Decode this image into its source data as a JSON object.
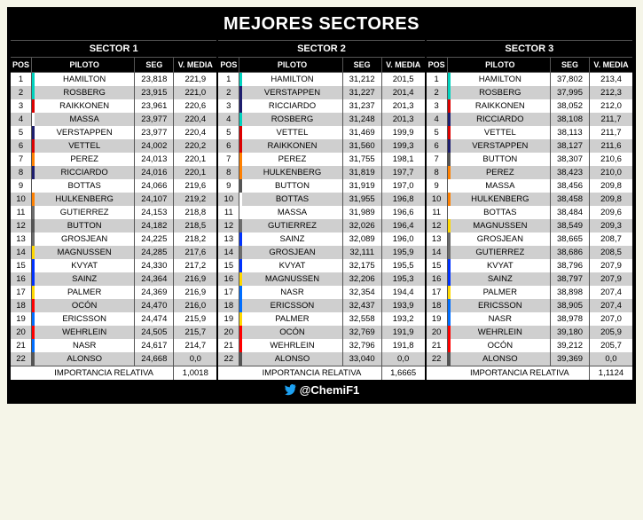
{
  "title": "MEJORES SECTORES",
  "handle": "@ChemiF1",
  "columns": {
    "pos": "POS",
    "piloto": "PILOTO",
    "seg": "SEG",
    "vmedia": "V. MEDIA"
  },
  "importancia_label": "IMPORTANCIA RELATIVA",
  "team_colors": {
    "mercedes": "#00d2be",
    "ferrari": "#dc0000",
    "redbull": "#1e1e6e",
    "williams": "#ffffff",
    "forceindia": "#ff8000",
    "tororosso": "#0032ff",
    "haas": "#6c6c6c",
    "renault": "#ffd800",
    "mclaren": "#555555",
    "manor": "#ff0000",
    "sauber": "#006eff"
  },
  "sectors": [
    {
      "name": "SECTOR 1",
      "importancia": "1,0018",
      "rows": [
        {
          "pos": 1,
          "piloto": "HAMILTON",
          "seg": "23,818",
          "vm": "221,9",
          "team": "mercedes"
        },
        {
          "pos": 2,
          "piloto": "ROSBERG",
          "seg": "23,915",
          "vm": "221,0",
          "team": "mercedes"
        },
        {
          "pos": 3,
          "piloto": "RAIKKONEN",
          "seg": "23,961",
          "vm": "220,6",
          "team": "ferrari"
        },
        {
          "pos": 4,
          "piloto": "MASSA",
          "seg": "23,977",
          "vm": "220,4",
          "team": "williams"
        },
        {
          "pos": 5,
          "piloto": "VERSTAPPEN",
          "seg": "23,977",
          "vm": "220,4",
          "team": "redbull"
        },
        {
          "pos": 6,
          "piloto": "VETTEL",
          "seg": "24,002",
          "vm": "220,2",
          "team": "ferrari"
        },
        {
          "pos": 7,
          "piloto": "PEREZ",
          "seg": "24,013",
          "vm": "220,1",
          "team": "forceindia"
        },
        {
          "pos": 8,
          "piloto": "RICCIARDO",
          "seg": "24,016",
          "vm": "220,1",
          "team": "redbull"
        },
        {
          "pos": 9,
          "piloto": "BOTTAS",
          "seg": "24,066",
          "vm": "219,6",
          "team": "williams"
        },
        {
          "pos": 10,
          "piloto": "HULKENBERG",
          "seg": "24,107",
          "vm": "219,2",
          "team": "forceindia"
        },
        {
          "pos": 11,
          "piloto": "GUTIERREZ",
          "seg": "24,153",
          "vm": "218,8",
          "team": "haas"
        },
        {
          "pos": 12,
          "piloto": "BUTTON",
          "seg": "24,182",
          "vm": "218,5",
          "team": "mclaren"
        },
        {
          "pos": 13,
          "piloto": "GROSJEAN",
          "seg": "24,225",
          "vm": "218,2",
          "team": "haas"
        },
        {
          "pos": 14,
          "piloto": "MAGNUSSEN",
          "seg": "24,285",
          "vm": "217,6",
          "team": "renault"
        },
        {
          "pos": 15,
          "piloto": "KVYAT",
          "seg": "24,330",
          "vm": "217,2",
          "team": "tororosso"
        },
        {
          "pos": 16,
          "piloto": "SAINZ",
          "seg": "24,364",
          "vm": "216,9",
          "team": "tororosso"
        },
        {
          "pos": 17,
          "piloto": "PALMER",
          "seg": "24,369",
          "vm": "216,9",
          "team": "renault"
        },
        {
          "pos": 18,
          "piloto": "OCÓN",
          "seg": "24,470",
          "vm": "216,0",
          "team": "manor"
        },
        {
          "pos": 19,
          "piloto": "ERICSSON",
          "seg": "24,474",
          "vm": "215,9",
          "team": "sauber"
        },
        {
          "pos": 20,
          "piloto": "WEHRLEIN",
          "seg": "24,505",
          "vm": "215,7",
          "team": "manor"
        },
        {
          "pos": 21,
          "piloto": "NASR",
          "seg": "24,617",
          "vm": "214,7",
          "team": "sauber"
        },
        {
          "pos": 22,
          "piloto": "ALONSO",
          "seg": "24,668",
          "vm": "0,0",
          "team": "mclaren"
        }
      ]
    },
    {
      "name": "SECTOR 2",
      "importancia": "1,6665",
      "rows": [
        {
          "pos": 1,
          "piloto": "HAMILTON",
          "seg": "31,212",
          "vm": "201,5",
          "team": "mercedes"
        },
        {
          "pos": 2,
          "piloto": "VERSTAPPEN",
          "seg": "31,227",
          "vm": "201,4",
          "team": "redbull"
        },
        {
          "pos": 3,
          "piloto": "RICCIARDO",
          "seg": "31,237",
          "vm": "201,3",
          "team": "redbull"
        },
        {
          "pos": 4,
          "piloto": "ROSBERG",
          "seg": "31,248",
          "vm": "201,3",
          "team": "mercedes"
        },
        {
          "pos": 5,
          "piloto": "VETTEL",
          "seg": "31,469",
          "vm": "199,9",
          "team": "ferrari"
        },
        {
          "pos": 6,
          "piloto": "RAIKKONEN",
          "seg": "31,560",
          "vm": "199,3",
          "team": "ferrari"
        },
        {
          "pos": 7,
          "piloto": "PEREZ",
          "seg": "31,755",
          "vm": "198,1",
          "team": "forceindia"
        },
        {
          "pos": 8,
          "piloto": "HULKENBERG",
          "seg": "31,819",
          "vm": "197,7",
          "team": "forceindia"
        },
        {
          "pos": 9,
          "piloto": "BUTTON",
          "seg": "31,919",
          "vm": "197,0",
          "team": "mclaren"
        },
        {
          "pos": 10,
          "piloto": "BOTTAS",
          "seg": "31,955",
          "vm": "196,8",
          "team": "williams"
        },
        {
          "pos": 11,
          "piloto": "MASSA",
          "seg": "31,989",
          "vm": "196,6",
          "team": "williams"
        },
        {
          "pos": 12,
          "piloto": "GUTIERREZ",
          "seg": "32,026",
          "vm": "196,4",
          "team": "haas"
        },
        {
          "pos": 13,
          "piloto": "SAINZ",
          "seg": "32,089",
          "vm": "196,0",
          "team": "tororosso"
        },
        {
          "pos": 14,
          "piloto": "GROSJEAN",
          "seg": "32,111",
          "vm": "195,9",
          "team": "haas"
        },
        {
          "pos": 15,
          "piloto": "KVYAT",
          "seg": "32,175",
          "vm": "195,5",
          "team": "tororosso"
        },
        {
          "pos": 16,
          "piloto": "MAGNUSSEN",
          "seg": "32,206",
          "vm": "195,3",
          "team": "renault"
        },
        {
          "pos": 17,
          "piloto": "NASR",
          "seg": "32,354",
          "vm": "194,4",
          "team": "sauber"
        },
        {
          "pos": 18,
          "piloto": "ERICSSON",
          "seg": "32,437",
          "vm": "193,9",
          "team": "sauber"
        },
        {
          "pos": 19,
          "piloto": "PALMER",
          "seg": "32,558",
          "vm": "193,2",
          "team": "renault"
        },
        {
          "pos": 20,
          "piloto": "OCÓN",
          "seg": "32,769",
          "vm": "191,9",
          "team": "manor"
        },
        {
          "pos": 21,
          "piloto": "WEHRLEIN",
          "seg": "32,796",
          "vm": "191,8",
          "team": "manor"
        },
        {
          "pos": 22,
          "piloto": "ALONSO",
          "seg": "33,040",
          "vm": "0,0",
          "team": "mclaren"
        }
      ]
    },
    {
      "name": "SECTOR 3",
      "importancia": "1,1124",
      "rows": [
        {
          "pos": 1,
          "piloto": "HAMILTON",
          "seg": "37,802",
          "vm": "213,4",
          "team": "mercedes"
        },
        {
          "pos": 2,
          "piloto": "ROSBERG",
          "seg": "37,995",
          "vm": "212,3",
          "team": "mercedes"
        },
        {
          "pos": 3,
          "piloto": "RAIKKONEN",
          "seg": "38,052",
          "vm": "212,0",
          "team": "ferrari"
        },
        {
          "pos": 4,
          "piloto": "RICCIARDO",
          "seg": "38,108",
          "vm": "211,7",
          "team": "redbull"
        },
        {
          "pos": 5,
          "piloto": "VETTEL",
          "seg": "38,113",
          "vm": "211,7",
          "team": "ferrari"
        },
        {
          "pos": 6,
          "piloto": "VERSTAPPEN",
          "seg": "38,127",
          "vm": "211,6",
          "team": "redbull"
        },
        {
          "pos": 7,
          "piloto": "BUTTON",
          "seg": "38,307",
          "vm": "210,6",
          "team": "mclaren"
        },
        {
          "pos": 8,
          "piloto": "PEREZ",
          "seg": "38,423",
          "vm": "210,0",
          "team": "forceindia"
        },
        {
          "pos": 9,
          "piloto": "MASSA",
          "seg": "38,456",
          "vm": "209,8",
          "team": "williams"
        },
        {
          "pos": 10,
          "piloto": "HULKENBERG",
          "seg": "38,458",
          "vm": "209,8",
          "team": "forceindia"
        },
        {
          "pos": 11,
          "piloto": "BOTTAS",
          "seg": "38,484",
          "vm": "209,6",
          "team": "williams"
        },
        {
          "pos": 12,
          "piloto": "MAGNUSSEN",
          "seg": "38,549",
          "vm": "209,3",
          "team": "renault"
        },
        {
          "pos": 13,
          "piloto": "GROSJEAN",
          "seg": "38,665",
          "vm": "208,7",
          "team": "haas"
        },
        {
          "pos": 14,
          "piloto": "GUTIERREZ",
          "seg": "38,686",
          "vm": "208,5",
          "team": "haas"
        },
        {
          "pos": 15,
          "piloto": "KVYAT",
          "seg": "38,796",
          "vm": "207,9",
          "team": "tororosso"
        },
        {
          "pos": 16,
          "piloto": "SAINZ",
          "seg": "38,797",
          "vm": "207,9",
          "team": "tororosso"
        },
        {
          "pos": 17,
          "piloto": "PALMER",
          "seg": "38,898",
          "vm": "207,4",
          "team": "renault"
        },
        {
          "pos": 18,
          "piloto": "ERICSSON",
          "seg": "38,905",
          "vm": "207,4",
          "team": "sauber"
        },
        {
          "pos": 19,
          "piloto": "NASR",
          "seg": "38,978",
          "vm": "207,0",
          "team": "sauber"
        },
        {
          "pos": 20,
          "piloto": "WEHRLEIN",
          "seg": "39,180",
          "vm": "205,9",
          "team": "manor"
        },
        {
          "pos": 21,
          "piloto": "OCÓN",
          "seg": "39,212",
          "vm": "205,7",
          "team": "manor"
        },
        {
          "pos": 22,
          "piloto": "ALONSO",
          "seg": "39,369",
          "vm": "0,0",
          "team": "mclaren"
        }
      ]
    }
  ]
}
